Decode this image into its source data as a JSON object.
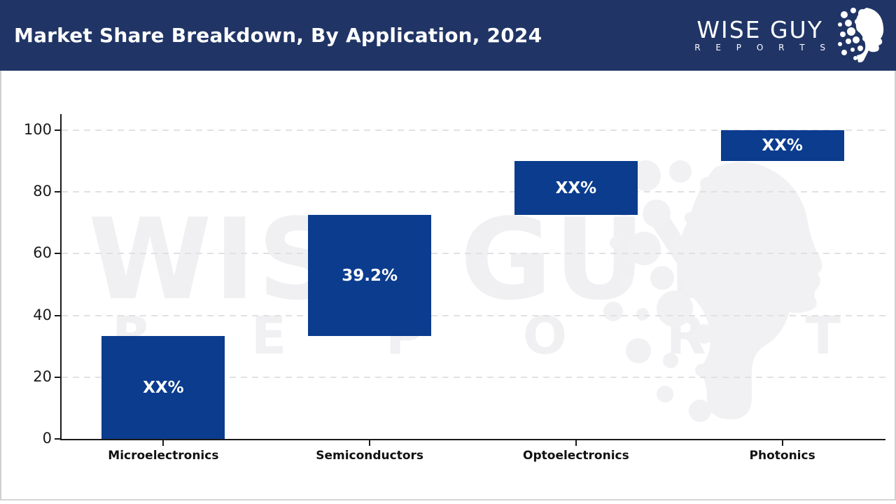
{
  "header": {
    "title": "Market Share Breakdown, By Application, 2024",
    "logo": {
      "line1": "WISE GUY",
      "line2": "R E P O R T S",
      "icon": "dotted-head-profile-icon"
    },
    "bg_color": "#203566"
  },
  "watermark": {
    "line1": "WISE GUY",
    "line2": "REPORTS",
    "icon": "dotted-head-profile-watermark"
  },
  "chart_data": {
    "type": "bar",
    "subtype": "floating-waterfall",
    "title": "Market Share Breakdown, By Application, 2024",
    "categories": [
      "Microelectronics",
      "Semiconductors",
      "Optoelectronics",
      "Photonics"
    ],
    "bars": [
      {
        "category": "Microelectronics",
        "start": 0,
        "end": 33.3,
        "label": "XX%"
      },
      {
        "category": "Semiconductors",
        "start": 33.3,
        "end": 72.5,
        "label": "39.2%"
      },
      {
        "category": "Optoelectronics",
        "start": 72.5,
        "end": 90,
        "label": "XX%"
      },
      {
        "category": "Photonics",
        "start": 90,
        "end": 100,
        "label": "XX%"
      }
    ],
    "ylim": [
      0,
      100
    ],
    "yticks": [
      0,
      20,
      40,
      60,
      80,
      100
    ],
    "xlabel": "",
    "ylabel": "",
    "legend": "none",
    "grid": "horizontal-dashed",
    "bar_color": "#0b3c8e",
    "bar_label_color": "#ffffff"
  }
}
